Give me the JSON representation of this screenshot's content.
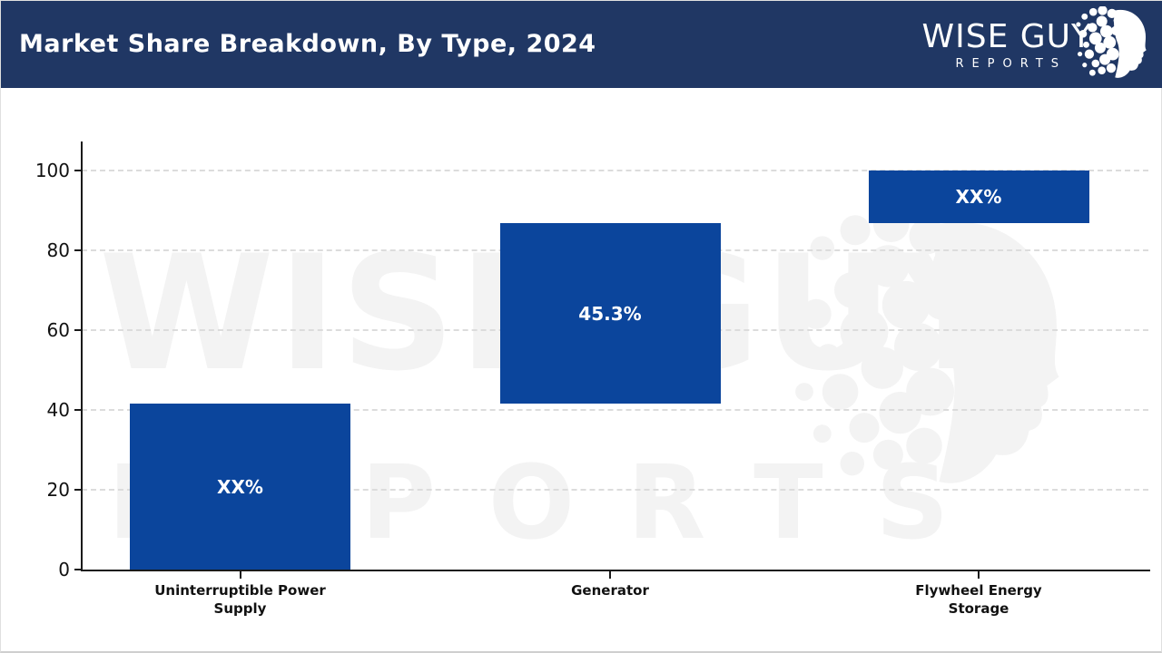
{
  "header": {
    "title": "Market Share Breakdown, By Type, 2024",
    "logo": {
      "name": "WISE GUY",
      "sub": "REPORTS"
    }
  },
  "watermark": {
    "line1": "WISE GUY",
    "line2": "REPORTS"
  },
  "chart_data": {
    "type": "bar",
    "subtype": "stacked-waterfall",
    "title": "Market Share Breakdown, By Type, 2024",
    "categories": [
      "Uninterruptible Power Supply",
      "Generator",
      "Flywheel Energy Storage"
    ],
    "series": [
      {
        "name": "Market Share (%)",
        "segments": [
          {
            "category": "Uninterruptible Power Supply",
            "from": 0,
            "to": 41.5,
            "label": "XX%"
          },
          {
            "category": "Generator",
            "from": 41.5,
            "to": 86.8,
            "label": "45.3%"
          },
          {
            "category": "Flywheel Energy Storage",
            "from": 86.8,
            "to": 100,
            "label": "XX%"
          }
        ]
      }
    ],
    "xlabel": "",
    "ylabel": "",
    "ylim": [
      0,
      100
    ],
    "yticks": [
      0,
      20,
      40,
      60,
      80,
      100
    ],
    "grid": "horizontal-dashed",
    "legend": "none",
    "bar_color": "#0b459c",
    "bar_label_color": "#ffffff"
  },
  "colors": {
    "header_bg": "#203764",
    "bar": "#0b459c",
    "gridline": "#dcdcdc",
    "axis": "#1a1a1a",
    "watermark": "#f3f3f3"
  }
}
